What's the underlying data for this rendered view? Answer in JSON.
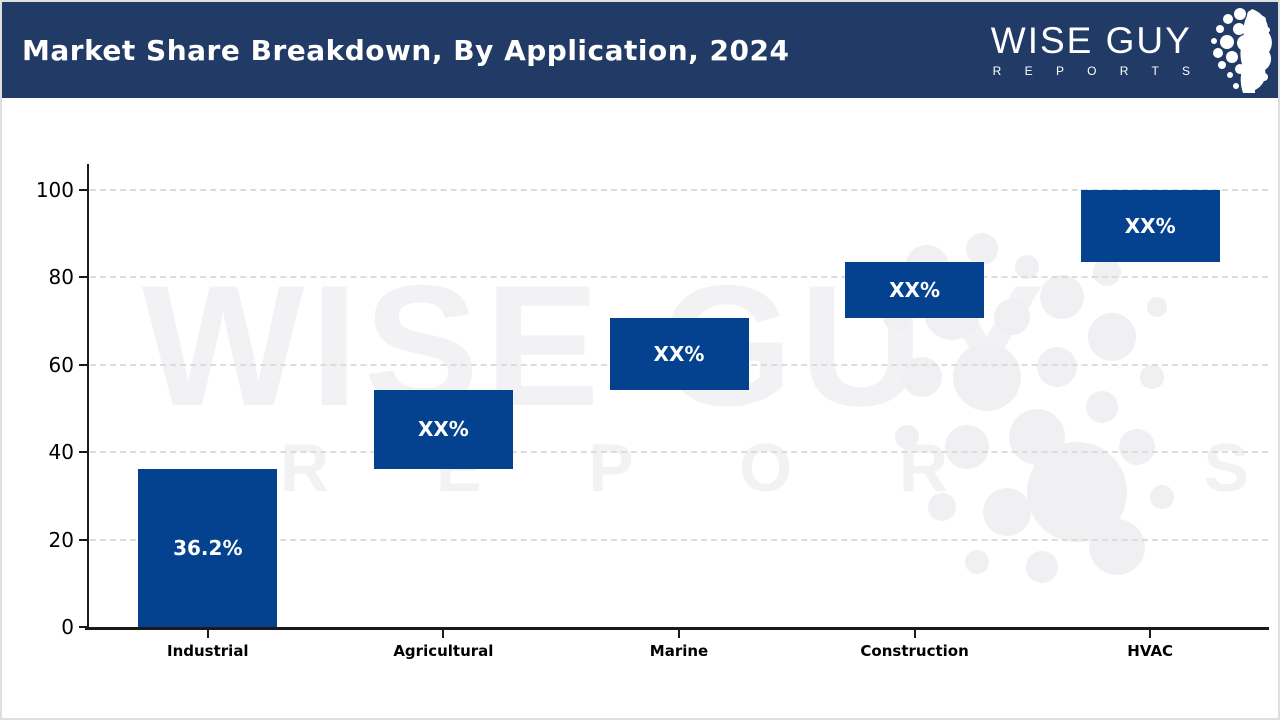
{
  "header": {
    "title": "Market Share Breakdown, By Application, 2024",
    "bg_color": "#223a66",
    "logo": {
      "line1": "WISE GUY",
      "line2": "R E P O R T S"
    }
  },
  "watermark": {
    "line1": "WISE GUY",
    "line2": "R E P O R T S"
  },
  "chart_data": {
    "type": "bar",
    "subtype": "waterfall",
    "title": "Market Share Breakdown, By Application, 2024",
    "categories": [
      "Industrial",
      "Agricultural",
      "Marine",
      "Construction",
      "HVAC"
    ],
    "bars": [
      {
        "category": "Industrial",
        "start": 0,
        "end": 36.2,
        "label": "36.2%"
      },
      {
        "category": "Agricultural",
        "start": 36.2,
        "end": 54.2,
        "label": "XX%"
      },
      {
        "category": "Marine",
        "start": 54.2,
        "end": 70.6,
        "label": "XX%"
      },
      {
        "category": "Construction",
        "start": 70.6,
        "end": 83.4,
        "label": "XX%"
      },
      {
        "category": "HVAC",
        "start": 83.4,
        "end": 100,
        "label": "XX%"
      }
    ],
    "y_axis": {
      "ticks": [
        0,
        20,
        40,
        60,
        80,
        100
      ],
      "min": 0,
      "max": 100
    },
    "grid": "horizontal dashed",
    "legend": "none",
    "bar_color": "#04418f",
    "bar_label_color": "#ffffff",
    "axis_color": "#1a1a1a",
    "gridline_color": "#dcdcdc"
  }
}
